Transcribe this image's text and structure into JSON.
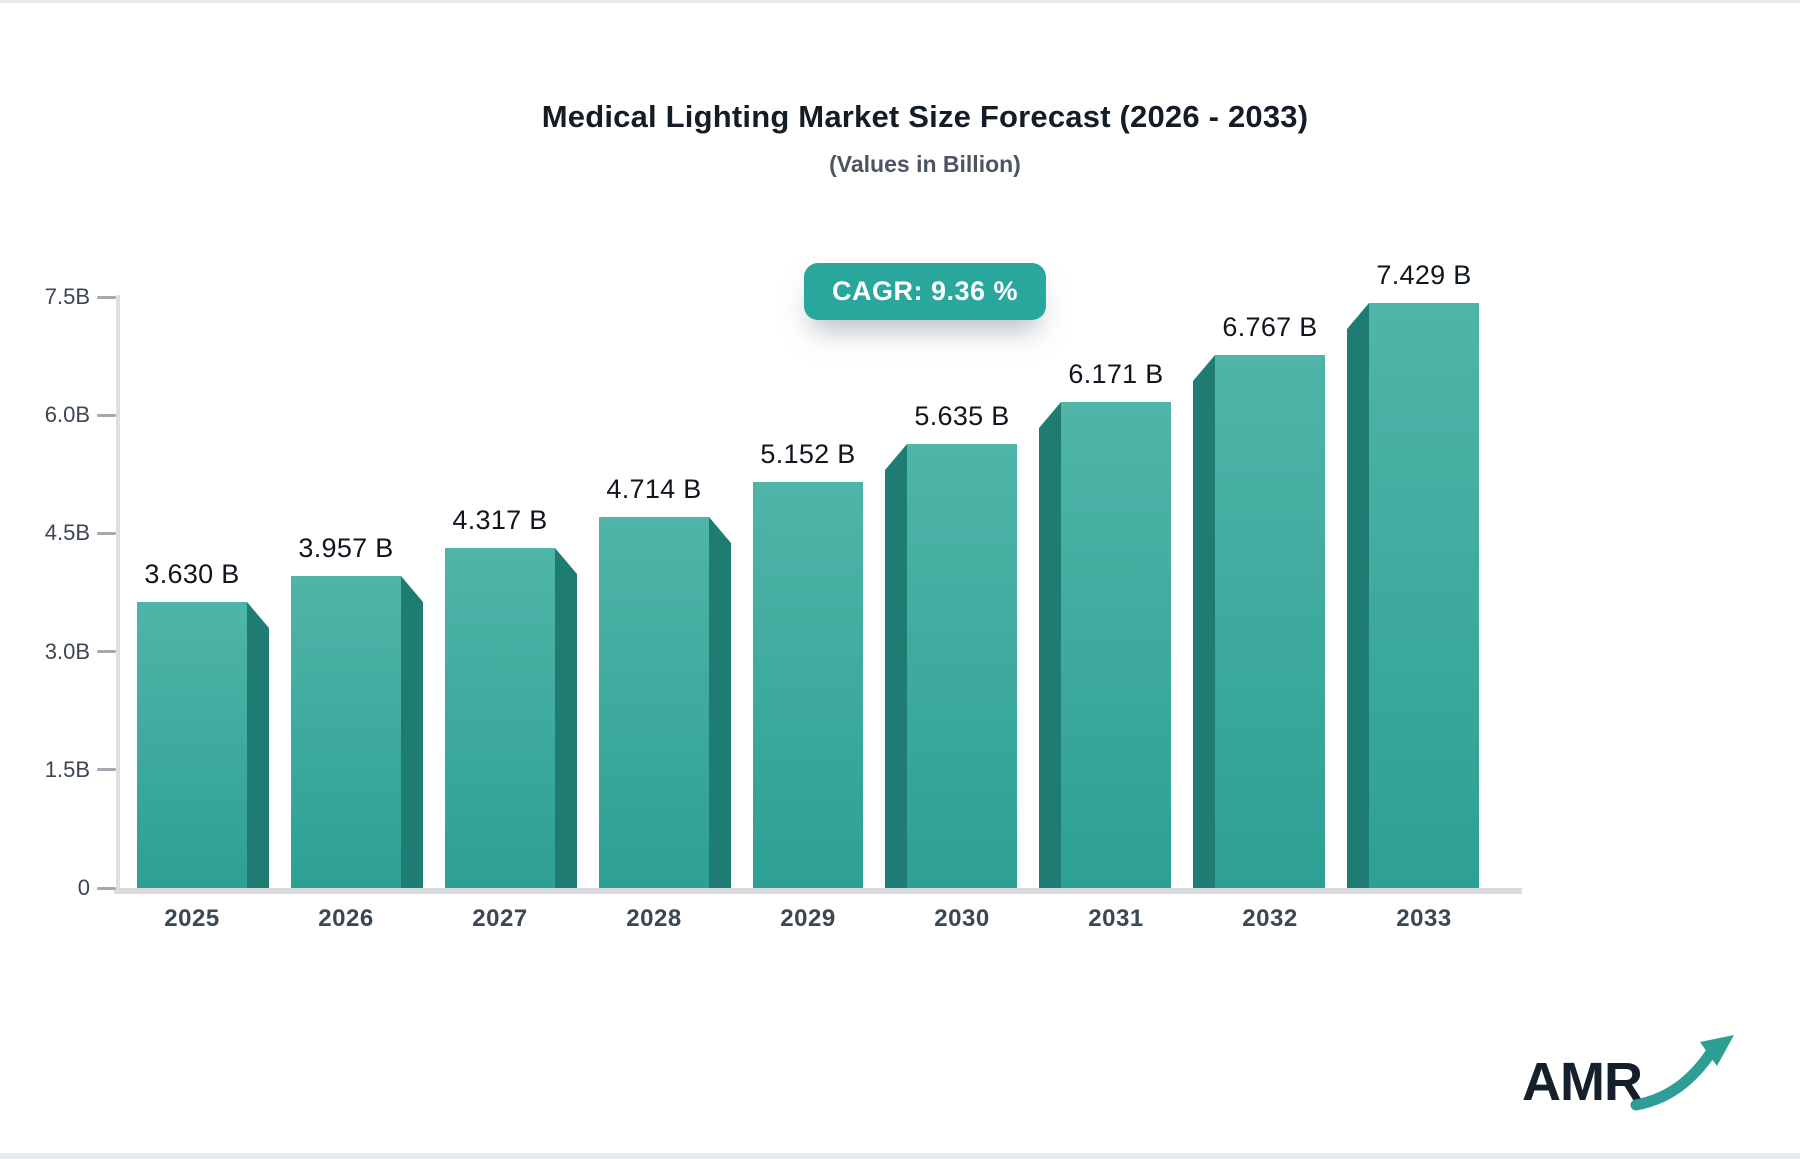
{
  "header": {
    "title": "Medical Lighting Market Size Forecast (2026 - 2033)",
    "subtitle": "(Values in Billion)",
    "cagr_badge": "CAGR: 9.36 %"
  },
  "chart_data": {
    "type": "bar",
    "title": "Medical Lighting Market Size Forecast (2026 - 2033)",
    "subtitle": "(Values in Billion)",
    "cagr": "9.36 %",
    "categories": [
      "2025",
      "2026",
      "2027",
      "2028",
      "2029",
      "2030",
      "2031",
      "2032",
      "2033"
    ],
    "values": [
      3.63,
      3.957,
      4.317,
      4.714,
      5.152,
      5.635,
      6.171,
      6.767,
      7.429
    ],
    "value_labels": [
      "3.630 B",
      "3.957 B",
      "4.317 B",
      "4.714 B",
      "5.152 B",
      "5.635 B",
      "6.171 B",
      "6.767 B",
      "7.429 B"
    ],
    "xlabel": "",
    "ylabel": "",
    "ylim": [
      0,
      7.5
    ],
    "yticks": [
      {
        "label": "7.5B",
        "value": 7.5
      },
      {
        "label": "6.0B",
        "value": 6.0
      },
      {
        "label": "4.5B",
        "value": 4.5
      },
      {
        "label": "3.0B",
        "value": 3.0
      },
      {
        "label": "1.5B",
        "value": 1.5
      },
      {
        "label": "0",
        "value": 0
      }
    ],
    "grid": false,
    "legend": "none",
    "bar_style": "3d-extruded"
  },
  "colors": {
    "accent": "#2aa79c",
    "bar_top": "#4fb5a8",
    "bar_bottom": "#2da093",
    "bar_side": "#1f7c72",
    "axis_line": "#dcdee2",
    "baseline": "#d9dbde",
    "tick": "#a3a9b1",
    "axis_text": "#3c4754",
    "title_text": "#141c26",
    "subtitle_text": "#4b5563",
    "label_text": "#10161d",
    "logo_arrow": "#2d9e94"
  },
  "branding": {
    "logo_text": "AMR"
  }
}
